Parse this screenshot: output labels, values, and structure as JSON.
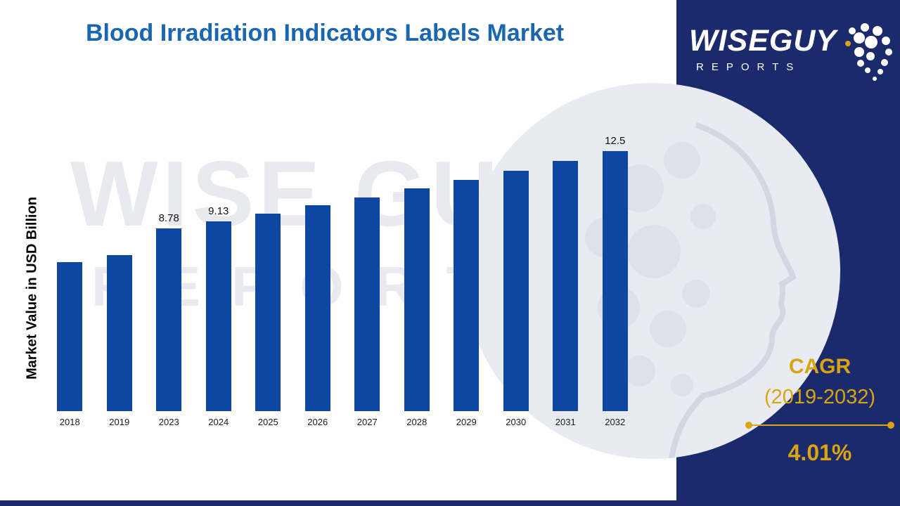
{
  "title": "Blood Irradiation Indicators Labels Market",
  "watermark": {
    "line1": "WISE GUY",
    "line2": "REPORTS"
  },
  "logo": {
    "line1": "WISEGUY",
    "line2": "REPORTS"
  },
  "cagr": {
    "label": "CAGR",
    "range": "(2019-2032)",
    "value": "4.01%"
  },
  "colors": {
    "title_blue": "#1a66b2",
    "bar_blue": "#0d47a1",
    "panel_navy": "#1b2a6b",
    "gold": "#d9a40f",
    "circle_gray": "#e9ebf2"
  },
  "chart_data": {
    "type": "bar",
    "title": "Blood Irradiation Indicators Labels Market",
    "xlabel": "",
    "ylabel": "Market Value in USD Billion",
    "categories": [
      "2018",
      "2019",
      "2023",
      "2024",
      "2025",
      "2026",
      "2027",
      "2028",
      "2029",
      "2030",
      "2031",
      "2032"
    ],
    "values": [
      7.15,
      7.5,
      8.78,
      9.13,
      9.5,
      9.88,
      10.27,
      10.69,
      11.11,
      11.56,
      12.02,
      12.5
    ],
    "data_labels": [
      "",
      "",
      "8.78",
      "9.13",
      "",
      "",
      "",
      "",
      "",
      "",
      "",
      "12.5"
    ],
    "ylim": [
      0,
      13
    ],
    "bar_color": "#0d47a1",
    "grid": false,
    "legend": "none"
  }
}
